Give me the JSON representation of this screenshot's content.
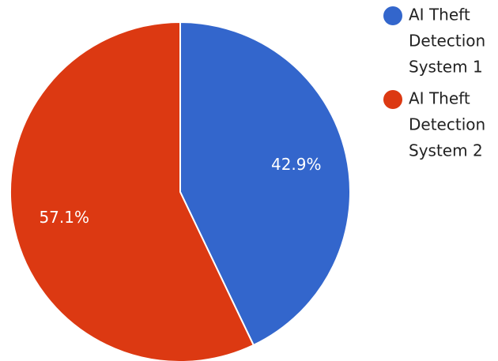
{
  "chart_data": {
    "type": "pie",
    "title": "",
    "slices": [
      {
        "label": "AI Theft Detection System 1",
        "value": 42.9,
        "display": "42.9%",
        "color": "#3366CC"
      },
      {
        "label": "AI Theft Detection System 2",
        "value": 57.1,
        "display": "57.1%",
        "color": "#DC3912"
      }
    ],
    "legend": {
      "position": "top-right",
      "entries": [
        {
          "lines": [
            "AI Theft",
            "Detection",
            "System 1"
          ],
          "color": "#3366CC"
        },
        {
          "lines": [
            "AI Theft",
            "Detection",
            "System 2"
          ],
          "color": "#DC3912"
        }
      ]
    },
    "start_angle_deg": 0,
    "direction": "clockwise"
  }
}
